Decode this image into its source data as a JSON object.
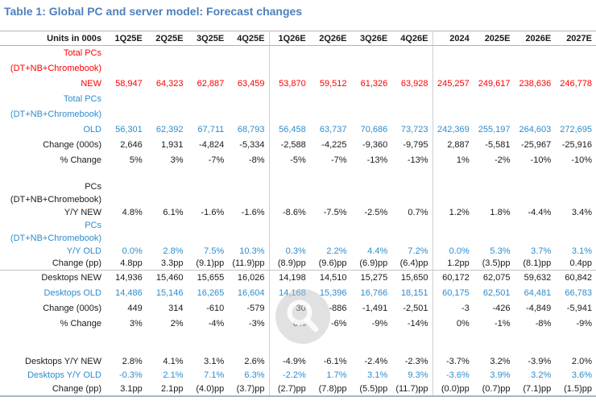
{
  "title": "Table 1: Global PC and server model: Forecast changes",
  "colors": {
    "title_blue": "#4e80bd",
    "data_red": "#fe0000",
    "data_blue": "#2e8ccd"
  },
  "watermark": {
    "icon": "magnifier-icon"
  },
  "table": {
    "unit_label": "Units in 000s",
    "column_groups": [
      [
        "1Q25E",
        "2Q25E",
        "3Q25E",
        "4Q25E"
      ],
      [
        "1Q26E",
        "2Q26E",
        "3Q26E",
        "4Q26E"
      ],
      [
        "2024",
        "2025E",
        "2026E",
        "2027E"
      ]
    ],
    "sections": [
      {
        "rows": [
          {
            "label": "Total PCs",
            "style": "red"
          },
          {
            "label": "(DT+NB+Chromebook)",
            "style": "red"
          },
          {
            "label": "NEW",
            "style": "red",
            "values": [
              "58,947",
              "64,323",
              "62,887",
              "63,459",
              "53,870",
              "59,512",
              "61,326",
              "63,928",
              "245,257",
              "249,617",
              "238,636",
              "246,778"
            ]
          },
          {
            "label": "Total PCs",
            "style": "blue"
          },
          {
            "label": "(DT+NB+Chromebook)",
            "style": "blue"
          },
          {
            "label": "OLD",
            "style": "blue",
            "values": [
              "56,301",
              "62,392",
              "67,711",
              "68,793",
              "56,458",
              "63,737",
              "70,686",
              "73,723",
              "242,369",
              "255,197",
              "264,603",
              "272,695"
            ]
          },
          {
            "label": "Change (000s)",
            "style": "black",
            "values": [
              "2,646",
              "1,931",
              "-4,824",
              "-5,334",
              "-2,588",
              "-4,225",
              "-9,360",
              "-9,795",
              "2,887",
              "-5,581",
              "-25,967",
              "-25,916"
            ]
          },
          {
            "label": "% Change",
            "style": "black",
            "values": [
              "5%",
              "3%",
              "-7%",
              "-8%",
              "-5%",
              "-7%",
              "-13%",
              "-13%",
              "1%",
              "-2%",
              "-10%",
              "-10%"
            ]
          }
        ]
      },
      {
        "rows": [
          {
            "label": "PCs",
            "style": "black-bold"
          },
          {
            "label": "(DT+NB+Chromebook)",
            "style": "black-bold"
          },
          {
            "label": "Y/Y NEW",
            "style": "black-bold",
            "values": [
              "4.8%",
              "6.1%",
              "-1.6%",
              "-1.6%",
              "-8.6%",
              "-7.5%",
              "-2.5%",
              "0.7%",
              "1.2%",
              "1.8%",
              "-4.4%",
              "3.4%"
            ]
          },
          {
            "label": "PCs",
            "style": "blue"
          },
          {
            "label": "(DT+NB+Chromebook)",
            "style": "blue"
          },
          {
            "label": "Y/Y OLD",
            "style": "blue",
            "values": [
              "0.0%",
              "2.8%",
              "7.5%",
              "10.3%",
              "0.3%",
              "2.2%",
              "4.4%",
              "7.2%",
              "0.0%",
              "5.3%",
              "3.7%",
              "3.1%"
            ]
          },
          {
            "label": "Change (pp)",
            "style": "black",
            "values": [
              "4.8pp",
              "3.3pp",
              "(9.1)pp",
              "(11.9)pp",
              "(8.9)pp",
              "(9.6)pp",
              "(6.9)pp",
              "(6.4)pp",
              "1.2pp",
              "(3.5)pp",
              "(8.1)pp",
              "0.4pp"
            ]
          }
        ]
      },
      {
        "rows": [
          {
            "label": "Desktops NEW",
            "style": "black-bold",
            "values": [
              "14,936",
              "15,460",
              "15,655",
              "16,026",
              "14,198",
              "14,510",
              "15,275",
              "15,650",
              "60,172",
              "62,075",
              "59,632",
              "60,842"
            ]
          },
          {
            "label": "Desktops OLD",
            "style": "blue",
            "values": [
              "14,486",
              "15,146",
              "16,265",
              "16,604",
              "14,168",
              "15,396",
              "16,766",
              "18,151",
              "60,175",
              "62,501",
              "64,481",
              "66,783"
            ]
          },
          {
            "label": "Change (000s)",
            "style": "black",
            "values": [
              "449",
              "314",
              "-610",
              "-579",
              "30",
              "-886",
              "-1,491",
              "-2,501",
              "-3",
              "-426",
              "-4,849",
              "-5,941"
            ]
          },
          {
            "label": "% Change",
            "style": "black",
            "values": [
              "3%",
              "2%",
              "-4%",
              "-3%",
              "0%",
              "-6%",
              "-9%",
              "-14%",
              "0%",
              "-1%",
              "-8%",
              "-9%"
            ]
          }
        ]
      },
      {
        "rows": [
          {
            "label": "Desktops Y/Y NEW",
            "style": "black-bold",
            "values": [
              "2.8%",
              "4.1%",
              "3.1%",
              "2.6%",
              "-4.9%",
              "-6.1%",
              "-2.4%",
              "-2.3%",
              "-3.7%",
              "3.2%",
              "-3.9%",
              "2.0%"
            ]
          },
          {
            "label": "Desktops Y/Y OLD",
            "style": "blue",
            "values": [
              "-0.3%",
              "2.1%",
              "7.1%",
              "6.3%",
              "-2.2%",
              "1.7%",
              "3.1%",
              "9.3%",
              "-3.6%",
              "3.9%",
              "3.2%",
              "3.6%"
            ]
          },
          {
            "label": "Change (pp)",
            "style": "black",
            "values": [
              "3.1pp",
              "2.1pp",
              "(4.0)pp",
              "(3.7)pp",
              "(2.7)pp",
              "(7.8)pp",
              "(5.5)pp",
              "(11.7)pp",
              "(0.0)pp",
              "(0.7)pp",
              "(7.1)pp",
              "(1.5)pp"
            ]
          }
        ]
      }
    ]
  }
}
